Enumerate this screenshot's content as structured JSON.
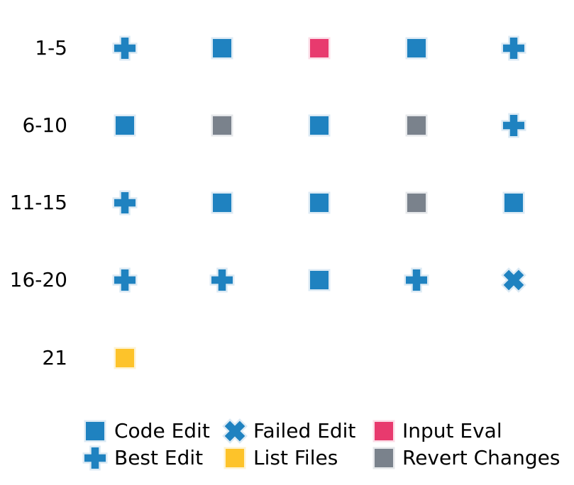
{
  "chart_data": {
    "type": "scatter",
    "title": "",
    "row_labels": [
      "1-5",
      "6-10",
      "11-15",
      "16-20",
      "21"
    ],
    "rows": [
      [
        "Best Edit",
        "Code Edit",
        "Input Eval",
        "Code Edit",
        "Best Edit"
      ],
      [
        "Code Edit",
        "Revert Changes",
        "Code Edit",
        "Revert Changes",
        "Best Edit"
      ],
      [
        "Best Edit",
        "Code Edit",
        "Code Edit",
        "Revert Changes",
        "Code Edit"
      ],
      [
        "Best Edit",
        "Best Edit",
        "Code Edit",
        "Best Edit",
        "Failed Edit"
      ],
      [
        "List Files"
      ]
    ],
    "actions": {
      "Code Edit": {
        "shape": "square",
        "fill": "#1f82c0",
        "halo": "#dceaf4"
      },
      "Best Edit": {
        "shape": "plus",
        "fill": "#1f82c0",
        "halo": "#dceaf4"
      },
      "Failed Edit": {
        "shape": "x",
        "fill": "#1f82c0",
        "halo": "#dceaf4"
      },
      "Input Eval": {
        "shape": "square",
        "fill": "#e83a6e",
        "halo": "#fbdde7"
      },
      "List Files": {
        "shape": "square",
        "fill": "#fdc32a",
        "halo": "#fef3d2"
      },
      "Revert Changes": {
        "shape": "square",
        "fill": "#7a828c",
        "halo": "#e5e7ea"
      }
    },
    "legend": {
      "position": "bottom",
      "rows": [
        [
          "Code Edit",
          "Failed Edit",
          "Input Eval"
        ],
        [
          "Best Edit",
          "List Files",
          "Revert Changes"
        ]
      ]
    },
    "grid": false,
    "background": "#ffffff"
  }
}
